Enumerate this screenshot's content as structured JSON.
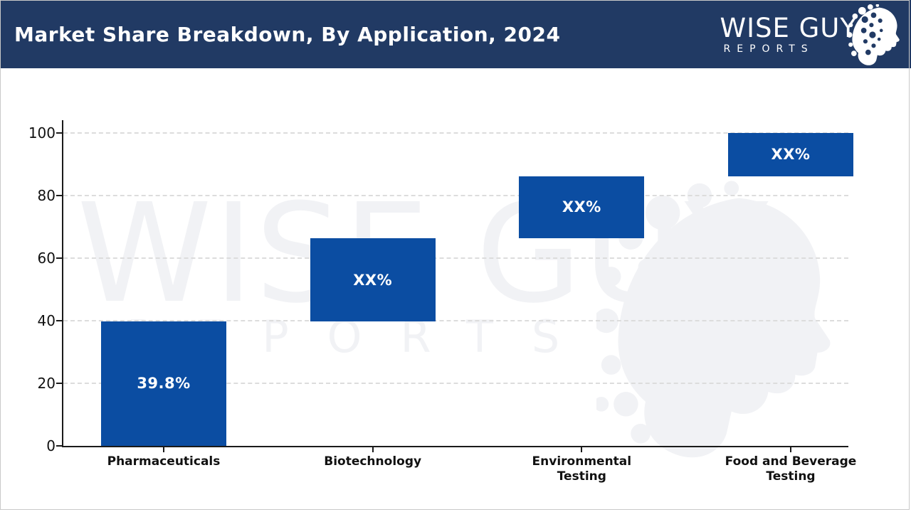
{
  "header": {
    "title": "Market Share Breakdown, By Application, 2024",
    "logo": {
      "wordmark": "WISE GUY",
      "subtext": "REPORTS"
    }
  },
  "watermark": {
    "wordmark": "WISE GUY",
    "subtext": "REPORTS"
  },
  "chart_data": {
    "type": "bar",
    "subtype": "waterfall",
    "title": "Market Share Breakdown, By Application, 2024",
    "categories": [
      "Pharmaceuticals",
      "Biotechnology",
      "Environmental\nTesting",
      "Food and Beverage\nTesting"
    ],
    "segments": [
      {
        "category": "Pharmaceuticals",
        "start": 0,
        "end": 39.8,
        "label": "39.8%"
      },
      {
        "category": "Biotechnology",
        "start": 39.8,
        "end": 66.3,
        "label": "XX%"
      },
      {
        "category": "Environmental Testing",
        "start": 66.3,
        "end": 86.2,
        "label": "XX%"
      },
      {
        "category": "Food and Beverage Testing",
        "start": 86.2,
        "end": 100,
        "label": "XX%"
      }
    ],
    "xlabel": "",
    "ylabel": "",
    "ylim": [
      0,
      104
    ],
    "yticks": [
      0,
      20,
      40,
      60,
      80,
      100
    ],
    "grid": "horizontal-dashed",
    "legend": "none",
    "bar_color": "#0b4da2",
    "bar_label_color": "#ffffff"
  },
  "colors": {
    "header_bg": "#213a64",
    "bar": "#0b4da2",
    "grid": "#dcdcdc",
    "axis": "#1a1a1a",
    "watermark": "#f1f2f5",
    "frame_border": "#c9c9c9"
  }
}
